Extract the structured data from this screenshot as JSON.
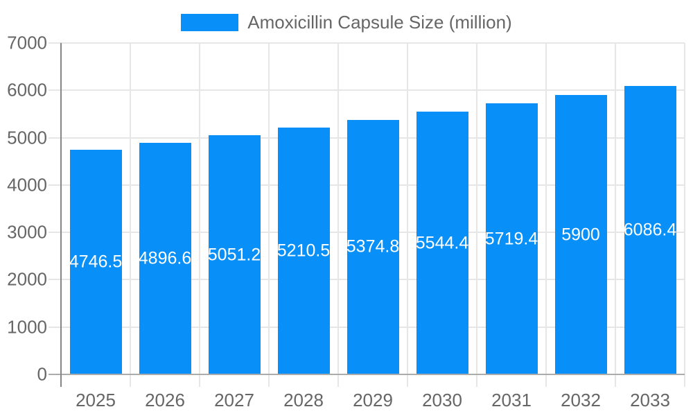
{
  "chart_data": {
    "type": "bar",
    "title": "",
    "xlabel": "",
    "ylabel": "",
    "legend": {
      "position": "top-center",
      "label": "Amoxicillin Capsule Size (million)"
    },
    "categories": [
      "2025",
      "2026",
      "2027",
      "2028",
      "2029",
      "2030",
      "2031",
      "2032",
      "2033"
    ],
    "values": [
      4746.5,
      4896.6,
      5051.2,
      5210.5,
      5374.8,
      5544.4,
      5719.4,
      5900,
      6086.4
    ],
    "bar_labels": [
      "4746.5",
      "4896.6",
      "5051.2",
      "5210.5",
      "5374.8",
      "5544.4",
      "5719.4",
      "5900",
      "6086.4"
    ],
    "bar_label_placement": "inside-center",
    "ylim": [
      0,
      7000
    ],
    "ytick_step": 1000,
    "ytick_labels": [
      "0",
      "1000",
      "2000",
      "3000",
      "4000",
      "5000",
      "6000",
      "7000"
    ],
    "grid": true,
    "colors": {
      "bar": "#0890f8",
      "axis_text": "#666666",
      "legend_text": "#666666",
      "bar_label_text": "#ffffff",
      "gridline": "#e6e6e6",
      "y_axis_line": "#858585",
      "x_axis_line": "#ababab",
      "background": "#ffffff"
    }
  }
}
